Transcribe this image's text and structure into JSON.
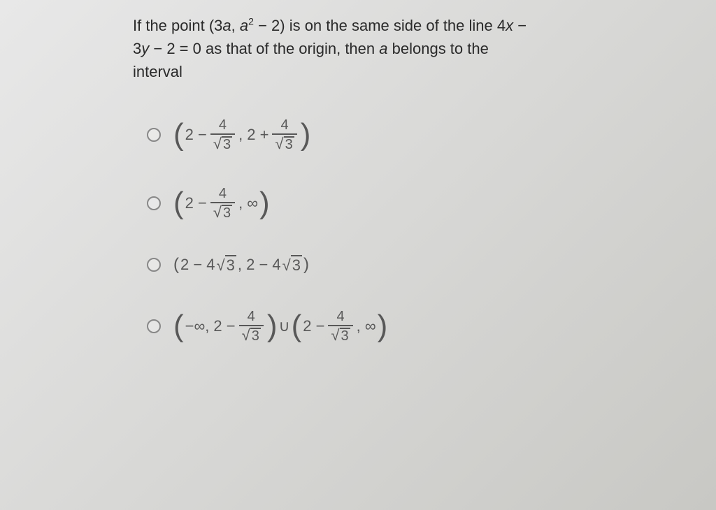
{
  "question": {
    "line1_pre": "If the point (3",
    "line1_a": "a",
    "line1_mid": ", ",
    "line1_a2": "a",
    "line1_exp": "2",
    "line1_post": " − 2) is on the same side of the line 4",
    "line1_x": "x",
    "line1_end": " −",
    "line2_pre": "3",
    "line2_y": "y",
    "line2_mid": " − 2 = 0 as that of the origin, then ",
    "line2_a": "a",
    "line2_post": " belongs to the",
    "line3": "interval"
  },
  "options": {
    "a": {
      "open": "(",
      "t1": "2 − ",
      "num1": "4",
      "rad1": "3",
      "sep": ", 2 + ",
      "num2": "4",
      "rad2": "3",
      "close": ")"
    },
    "b": {
      "open": "(",
      "t1": "2 − ",
      "num1": "4",
      "rad1": "3",
      "sep": ", ∞",
      "close": ")"
    },
    "c": {
      "open": "(",
      "t1": "2 − 4",
      "rad1": "3",
      "sep": ", 2 − 4",
      "rad2": "3",
      "close": ")"
    },
    "d": {
      "open1": "(",
      "t1": "−∞, 2 − ",
      "num1": "4",
      "rad1": "3",
      "close1": ")",
      "union": " ∪ ",
      "open2": "(",
      "t2": "2 − ",
      "num2": "4",
      "rad2": "3",
      "sep2": ", ∞",
      "close2": ")"
    }
  },
  "style": {
    "text_color": "#2a2a2a",
    "math_color": "#585858",
    "radio_border": "#888888",
    "background": "#dcdcda",
    "question_fontsize": 22,
    "math_fontsize": 22
  }
}
